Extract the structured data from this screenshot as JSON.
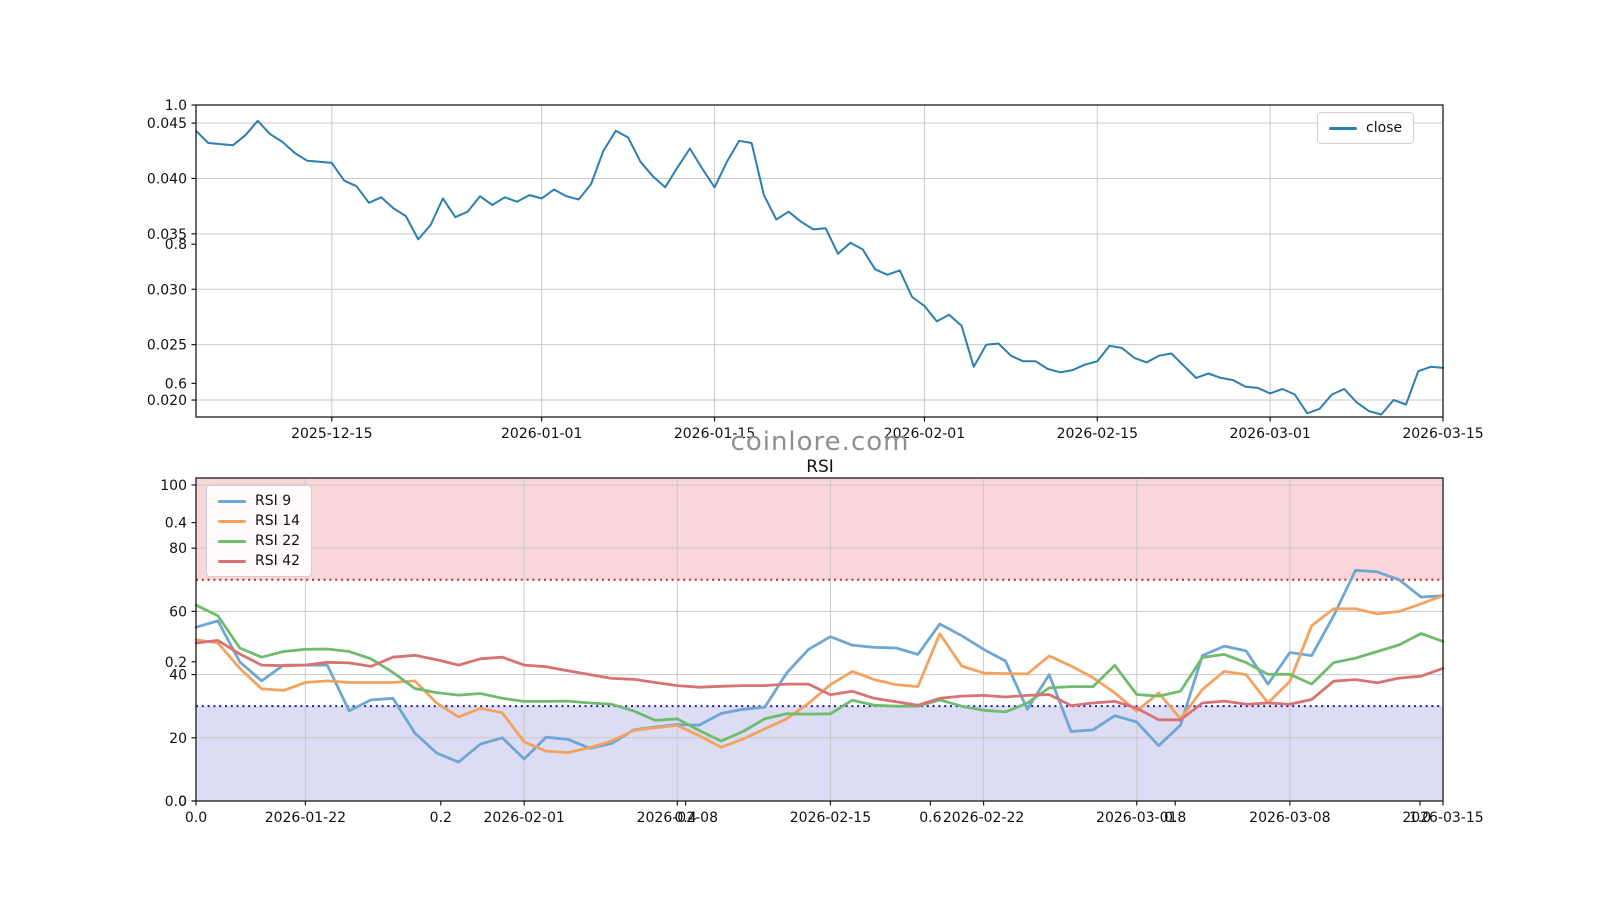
{
  "watermark": "coinlore.com",
  "colors": {
    "close_line": "#2d7fb0",
    "rsi9": "#6fa6d2",
    "rsi14": "#f3a35f",
    "rsi22": "#6fbc6f",
    "rsi42": "#d97373",
    "overbought_line": "#cc2133",
    "oversold_line": "#1a1aae",
    "overbought_fill": "#f9d6d8",
    "oversold_fill": "#dcdcf4",
    "grid": "#c9c9c9",
    "spine": "#1a1a1a",
    "text": "#111111"
  },
  "overlay_axis": {
    "x_tick_labels": [
      "0.0",
      "0.2",
      "0.4",
      "0.6",
      "0.8",
      "1.0"
    ],
    "y_tick_labels": [
      "1.0",
      "0.8",
      "0.6",
      "0.4",
      "0.2",
      "0.0"
    ]
  },
  "chart_data": [
    {
      "id": "price",
      "type": "line",
      "title": "",
      "x_start_date": "2025-12-04",
      "x_end_date": "2026-03-15",
      "legend_position": "upper right",
      "legend_entries": [
        "close"
      ],
      "x_ticks": [
        {
          "label": "2025-12-15",
          "i": 11
        },
        {
          "label": "2026-01-01",
          "i": 28
        },
        {
          "label": "2026-01-15",
          "i": 42
        },
        {
          "label": "2026-02-01",
          "i": 59
        },
        {
          "label": "2026-02-15",
          "i": 73
        },
        {
          "label": "2026-03-01",
          "i": 87
        },
        {
          "label": "2026-03-15",
          "i": 101
        }
      ],
      "y_ticks": [
        {
          "label": "0.045",
          "v": 0.045
        },
        {
          "label": "0.040",
          "v": 0.04
        },
        {
          "label": "0.035",
          "v": 0.035
        },
        {
          "label": "0.030",
          "v": 0.03
        },
        {
          "label": "0.025",
          "v": 0.025
        },
        {
          "label": "0.020",
          "v": 0.02
        }
      ],
      "ylim": [
        0.01847,
        0.04663
      ],
      "grid": true,
      "series": [
        {
          "name": "close",
          "color_key": "close_line",
          "width": 2,
          "values": [
            0.0443,
            0.0432,
            0.0431,
            0.043,
            0.0439,
            0.0452,
            0.044,
            0.0433,
            0.0423,
            0.0416,
            0.0415,
            0.0414,
            0.0398,
            0.0393,
            0.0378,
            0.0383,
            0.0373,
            0.0366,
            0.0345,
            0.0358,
            0.0382,
            0.0365,
            0.037,
            0.0384,
            0.0376,
            0.0383,
            0.0379,
            0.0385,
            0.0382,
            0.039,
            0.0384,
            0.0381,
            0.0395,
            0.0425,
            0.0443,
            0.0437,
            0.0415,
            0.0402,
            0.0392,
            0.041,
            0.0427,
            0.0409,
            0.0392,
            0.0415,
            0.0434,
            0.0432,
            0.0385,
            0.0363,
            0.037,
            0.0361,
            0.0354,
            0.0355,
            0.0332,
            0.0342,
            0.0336,
            0.0318,
            0.0313,
            0.0317,
            0.0293,
            0.0285,
            0.0271,
            0.0277,
            0.0267,
            0.023,
            0.025,
            0.0251,
            0.024,
            0.0235,
            0.0235,
            0.0228,
            0.0225,
            0.0227,
            0.0232,
            0.0235,
            0.0249,
            0.0247,
            0.0238,
            0.0234,
            0.024,
            0.0242,
            0.0231,
            0.022,
            0.0224,
            0.022,
            0.0218,
            0.0212,
            0.0211,
            0.0206,
            0.021,
            0.0205,
            0.0188,
            0.0192,
            0.0205,
            0.021,
            0.0198,
            0.019,
            0.0187,
            0.02,
            0.0196,
            0.0226,
            0.023,
            0.0229
          ]
        }
      ]
    },
    {
      "id": "rsi",
      "type": "line",
      "title": "RSI",
      "x_start_date": "2026-01-17",
      "x_end_date": "2026-03-15",
      "legend_position": "upper left",
      "legend_entries": [
        "RSI 9",
        "RSI 14",
        "RSI 22",
        "RSI 42"
      ],
      "x_ticks": [
        {
          "label": "2026-01-22",
          "i": 5
        },
        {
          "label": "2026-02-01",
          "i": 15
        },
        {
          "label": "2026-02-08",
          "i": 22
        },
        {
          "label": "2026-02-15",
          "i": 29
        },
        {
          "label": "2026-02-22",
          "i": 36
        },
        {
          "label": "2026-03-01",
          "i": 43
        },
        {
          "label": "2026-03-08",
          "i": 50
        },
        {
          "label": "2026-03-15",
          "i": 57
        }
      ],
      "y_ticks": [
        {
          "label": "100",
          "v": 100
        },
        {
          "label": "80",
          "v": 80
        },
        {
          "label": "60",
          "v": 60
        },
        {
          "label": "40",
          "v": 40
        },
        {
          "label": "20",
          "v": 20
        },
        {
          "label": "0",
          "v": 0
        }
      ],
      "ylim": [
        0,
        102.2
      ],
      "grid": true,
      "overbought_level": 70,
      "oversold_level": 30,
      "bands": [
        {
          "name": "overbought-band",
          "from": 70,
          "to": 102.2,
          "color_key": "overbought_fill"
        },
        {
          "name": "oversold-band",
          "from": 0,
          "to": 30,
          "color_key": "oversold_fill"
        }
      ],
      "hlines": [
        {
          "name": "overbought-line",
          "v": 70,
          "color_key": "overbought_line"
        },
        {
          "name": "oversold-line",
          "v": 30,
          "color_key": "oversold_line"
        }
      ],
      "series": [
        {
          "name": "RSI 9",
          "color_key": "rsi9",
          "width": 2.8,
          "values": [
            55,
            57,
            44,
            38,
            43,
            43,
            43,
            28.5,
            32,
            32.5,
            21.5,
            15.2,
            12.3,
            18,
            20,
            13.3,
            20.2,
            19.5,
            16.7,
            18.2,
            22.5,
            23.4,
            24.2,
            24,
            27.7,
            29,
            29.7,
            40.5,
            48,
            52,
            49.3,
            48.6,
            48.4,
            46.4,
            56,
            52.3,
            48,
            44.3,
            29,
            40,
            22,
            22.5,
            27,
            25,
            17.5,
            24,
            46,
            49,
            47.5,
            37,
            47,
            46,
            58.6,
            73,
            72.5,
            70,
            64.5,
            65
          ]
        },
        {
          "name": "RSI 14",
          "color_key": "rsi14",
          "width": 2.8,
          "values": [
            51,
            50,
            42,
            35.5,
            35,
            37.5,
            38,
            37.5,
            37.5,
            37.5,
            38,
            31,
            26.6,
            29.3,
            27.9,
            18.7,
            15.8,
            15.3,
            16.9,
            19,
            22.3,
            23.2,
            23.9,
            20.7,
            17,
            19.6,
            22.8,
            26,
            30.9,
            36.8,
            41,
            38.4,
            36.8,
            36.2,
            52.9,
            42.7,
            40.5,
            40.3,
            40.2,
            45.9,
            42.7,
            39,
            34.2,
            28.4,
            34.2,
            26,
            35.3,
            41,
            40,
            31,
            37.9,
            55.5,
            60.8,
            60.8,
            59.2,
            60,
            62.4,
            65
          ]
        },
        {
          "name": "RSI 22",
          "color_key": "rsi22",
          "width": 2.8,
          "values": [
            62,
            58.6,
            48.4,
            45.5,
            47.3,
            48,
            48.1,
            47.3,
            45,
            40.7,
            35.6,
            34.3,
            33.5,
            34,
            32.5,
            31.5,
            31.5,
            31.6,
            31,
            30.6,
            28.5,
            25.5,
            26,
            22.3,
            19,
            22,
            26,
            27.6,
            27.5,
            27.6,
            31.9,
            30.3,
            30,
            30,
            32,
            30,
            28.7,
            28.2,
            31,
            35.8,
            36.2,
            36.2,
            42.9,
            33.7,
            33.2,
            34.7,
            45.4,
            46.4,
            43.8,
            40.1,
            40.1,
            37,
            43.8,
            45.2,
            47.3,
            49.4,
            53,
            50.5
          ]
        },
        {
          "name": "RSI 42",
          "color_key": "rsi42",
          "width": 2.8,
          "values": [
            50,
            50.8,
            46.5,
            43,
            42.8,
            43,
            43.9,
            43.7,
            42.6,
            45.5,
            46.1,
            44.7,
            43,
            45,
            45.5,
            43,
            42.5,
            41.2,
            40,
            38.8,
            38.5,
            37.5,
            36.5,
            36,
            36.3,
            36.5,
            36.5,
            37,
            37,
            33.6,
            34.7,
            32.5,
            31.4,
            30.3,
            32.5,
            33.2,
            33.4,
            32.9,
            33.4,
            33.7,
            30.2,
            31,
            31.5,
            29.4,
            25.7,
            25.7,
            31,
            31.6,
            30.6,
            31,
            30.6,
            32.1,
            37.9,
            38.4,
            37.4,
            38.9,
            39.5,
            42
          ]
        }
      ]
    }
  ]
}
